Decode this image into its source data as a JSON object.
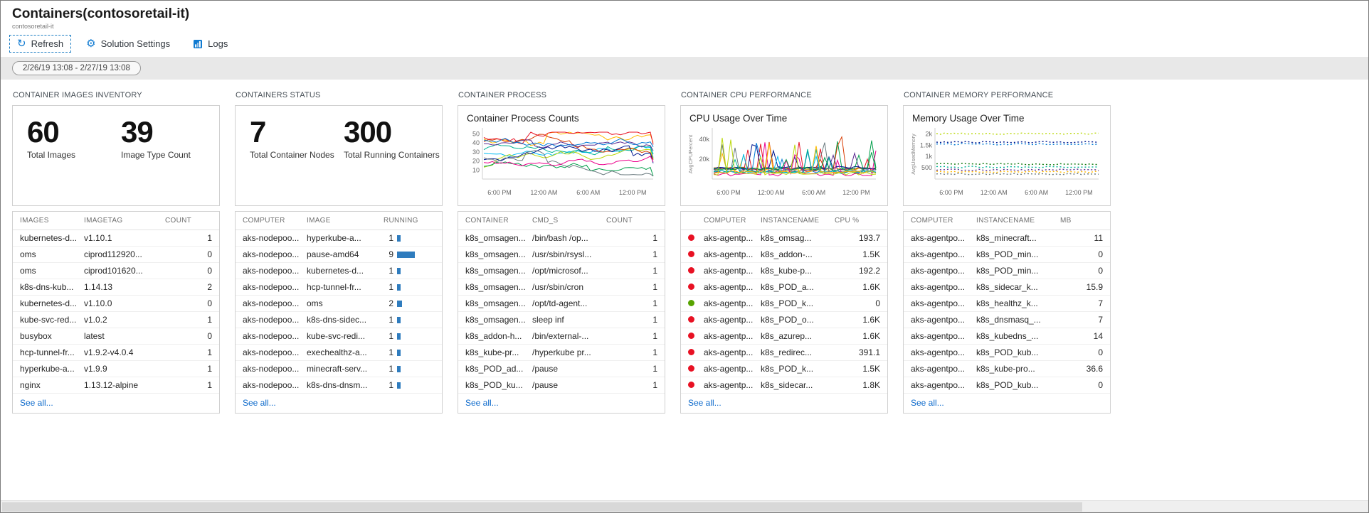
{
  "window": {
    "title": "Containers(contosoretail-it)",
    "subtitle": "contosoretail-it"
  },
  "toolbar": {
    "refresh": "Refresh",
    "solution_settings": "Solution Settings",
    "logs": "Logs"
  },
  "date_range": "2/26/19 13:08 - 2/27/19 13:08",
  "colors": {
    "accent": "#0078d4",
    "red": "#e81123",
    "green": "#57a300",
    "bar": "#2f7cbe",
    "link": "#0b69cb"
  },
  "chart_palette": [
    "#00bcf2",
    "#00b294",
    "#bad80a",
    "#009e49",
    "#ffb900",
    "#d83b01",
    "#e81123",
    "#5c2d91",
    "#0078d4",
    "#00188f",
    "#69797e",
    "#ec008c"
  ],
  "chart_data": [
    {
      "type": "line",
      "title": "Container Process Counts",
      "ylabel": "",
      "y_ticks": [
        "50",
        "40",
        "30",
        "20",
        "10"
      ],
      "x_ticks": [
        "6:00 PM",
        "12:00 AM",
        "6:00 AM",
        "12:00 PM"
      ],
      "ylim": [
        0,
        55
      ],
      "series_style": "band"
    },
    {
      "type": "line",
      "title": "CPU Usage Over Time",
      "ylabel": "AvgCPUPercent",
      "y_ticks": [
        "40k",
        "20k"
      ],
      "x_ticks": [
        "6:00 PM",
        "12:00 AM",
        "6:00 AM",
        "12:00 PM"
      ],
      "ylim": [
        0,
        50000
      ],
      "series_style": "spiky"
    },
    {
      "type": "line",
      "title": "Memory Usage Over Time",
      "ylabel": "AvgUsedMemory",
      "y_ticks": [
        "2k",
        "1.5k",
        "1k",
        "500"
      ],
      "x_ticks": [
        "6:00 PM",
        "12:00 AM",
        "6:00 AM",
        "12:00 PM"
      ],
      "ylim": [
        0,
        2200
      ],
      "series_style": "flat"
    }
  ],
  "panels": {
    "images_inventory": {
      "title": "CONTAINER IMAGES INVENTORY",
      "stats": [
        {
          "value": "60",
          "label": "Total Images"
        },
        {
          "value": "39",
          "label": "Image Type Count"
        }
      ],
      "table": {
        "columns": [
          "IMAGES",
          "IMAGETAG",
          "COUNT"
        ],
        "rows": [
          [
            "kubernetes-d...",
            "v1.10.1",
            "1"
          ],
          [
            "oms",
            "ciprod112920...",
            "0"
          ],
          [
            "oms",
            "ciprod101620...",
            "0"
          ],
          [
            "k8s-dns-kub...",
            "1.14.13",
            "2"
          ],
          [
            "kubernetes-d...",
            "v1.10.0",
            "0"
          ],
          [
            "kube-svc-red...",
            "v1.0.2",
            "1"
          ],
          [
            "busybox",
            "latest",
            "0"
          ],
          [
            "hcp-tunnel-fr...",
            "v1.9.2-v4.0.4",
            "1"
          ],
          [
            "hyperkube-a...",
            "v1.9.9",
            "1"
          ],
          [
            "nginx",
            "1.13.12-alpine",
            "1"
          ]
        ],
        "see_all": "See all..."
      }
    },
    "containers_status": {
      "title": "CONTAINERS STATUS",
      "stats": [
        {
          "value": "7",
          "label": "Total Container Nodes"
        },
        {
          "value": "300",
          "label": "Total Running Containers"
        }
      ],
      "table": {
        "columns": [
          "COMPUTER",
          "IMAGE",
          "RUNNING"
        ],
        "rows": [
          [
            "aks-nodepoo...",
            "hyperkube-a...",
            1
          ],
          [
            "aks-nodepoo...",
            "pause-amd64",
            9
          ],
          [
            "aks-nodepoo...",
            "kubernetes-d...",
            1
          ],
          [
            "aks-nodepoo...",
            "hcp-tunnel-fr...",
            1
          ],
          [
            "aks-nodepoo...",
            "oms",
            2
          ],
          [
            "aks-nodepoo...",
            "k8s-dns-sidec...",
            1
          ],
          [
            "aks-nodepoo...",
            "kube-svc-redi...",
            1
          ],
          [
            "aks-nodepoo...",
            "exechealthz-a...",
            1
          ],
          [
            "aks-nodepoo...",
            "minecraft-serv...",
            1
          ],
          [
            "aks-nodepoo...",
            "k8s-dns-dnsm...",
            1
          ]
        ],
        "see_all": "See all..."
      }
    },
    "container_process": {
      "title": "CONTAINER PROCESS",
      "table": {
        "columns": [
          "CONTAINER",
          "CMD_S",
          "COUNT"
        ],
        "rows": [
          [
            "k8s_omsagen...",
            "/bin/bash /op...",
            "1"
          ],
          [
            "k8s_omsagen...",
            "/usr/sbin/rsysl...",
            "1"
          ],
          [
            "k8s_omsagen...",
            "/opt/microsof...",
            "1"
          ],
          [
            "k8s_omsagen...",
            "/usr/sbin/cron",
            "1"
          ],
          [
            "k8s_omsagen...",
            "/opt/td-agent...",
            "1"
          ],
          [
            "k8s_omsagen...",
            "sleep inf",
            "1"
          ],
          [
            "k8s_addon-h...",
            "/bin/external-...",
            "1"
          ],
          [
            "k8s_kube-pr...",
            "/hyperkube pr...",
            "1"
          ],
          [
            "k8s_POD_ad...",
            "/pause",
            "1"
          ],
          [
            "k8s_POD_ku...",
            "/pause",
            "1"
          ]
        ],
        "see_all": "See all..."
      }
    },
    "cpu_performance": {
      "title": "CONTAINER CPU PERFORMANCE",
      "table": {
        "columns": [
          "COMPUTER",
          "INSTANCENAME",
          "CPU %"
        ],
        "rows": [
          [
            "red",
            "aks-agentp...",
            "k8s_omsag...",
            "193.7"
          ],
          [
            "red",
            "aks-agentp...",
            "k8s_addon-...",
            "1.5K"
          ],
          [
            "red",
            "aks-agentp...",
            "k8s_kube-p...",
            "192.2"
          ],
          [
            "red",
            "aks-agentp...",
            "k8s_POD_a...",
            "1.6K"
          ],
          [
            "green",
            "aks-agentp...",
            "k8s_POD_k...",
            "0"
          ],
          [
            "red",
            "aks-agentp...",
            "k8s_POD_o...",
            "1.6K"
          ],
          [
            "red",
            "aks-agentp...",
            "k8s_azurep...",
            "1.6K"
          ],
          [
            "red",
            "aks-agentp...",
            "k8s_redirec...",
            "391.1"
          ],
          [
            "red",
            "aks-agentp...",
            "k8s_POD_k...",
            "1.5K"
          ],
          [
            "red",
            "aks-agentp...",
            "k8s_sidecar...",
            "1.8K"
          ]
        ],
        "see_all": "See all..."
      }
    },
    "memory_performance": {
      "title": "CONTAINER MEMORY PERFORMANCE",
      "table": {
        "columns": [
          "COMPUTER",
          "INSTANCENAME",
          "MB"
        ],
        "rows": [
          [
            "aks-agentpo...",
            "k8s_minecraft...",
            "11"
          ],
          [
            "aks-agentpo...",
            "k8s_POD_min...",
            "0"
          ],
          [
            "aks-agentpo...",
            "k8s_POD_min...",
            "0"
          ],
          [
            "aks-agentpo...",
            "k8s_sidecar_k...",
            "15.9"
          ],
          [
            "aks-agentpo...",
            "k8s_healthz_k...",
            "7"
          ],
          [
            "aks-agentpo...",
            "k8s_dnsmasq_...",
            "7"
          ],
          [
            "aks-agentpo...",
            "k8s_kubedns_...",
            "14"
          ],
          [
            "aks-agentpo...",
            "k8s_POD_kub...",
            "0"
          ],
          [
            "aks-agentpo...",
            "k8s_kube-pro...",
            "36.6"
          ],
          [
            "aks-agentpo...",
            "k8s_POD_kub...",
            "0"
          ]
        ],
        "see_all": "See all..."
      }
    }
  }
}
